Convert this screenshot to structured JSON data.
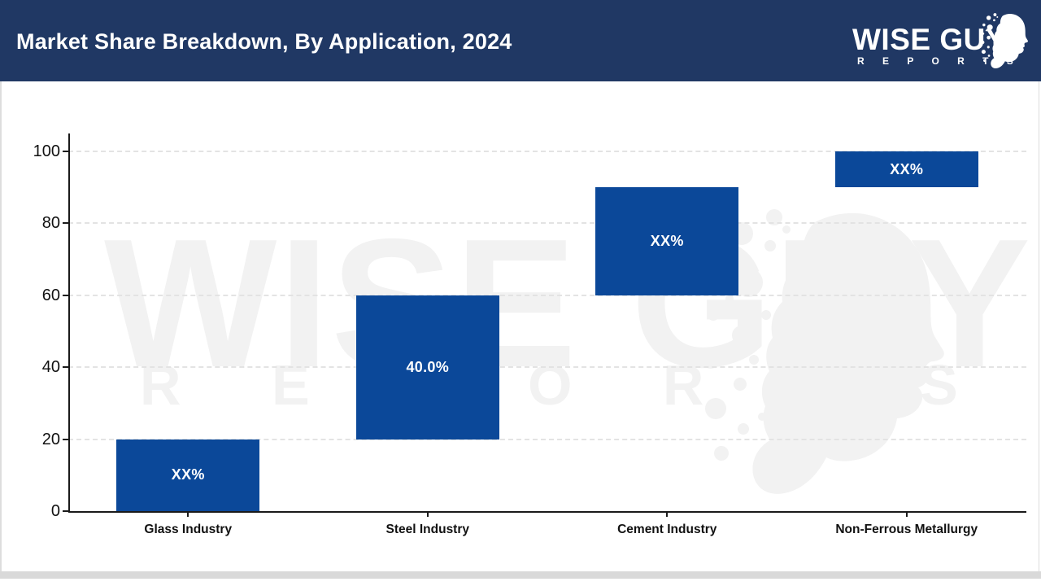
{
  "header": {
    "title": "Market Share Breakdown, By Application, 2024",
    "brand": {
      "line1": "WISE GUY",
      "line2": "R E P O R T S"
    }
  },
  "watermark": {
    "line1": "WISE GUY",
    "line2": "R E P O R T S"
  },
  "chart_data": {
    "type": "bar",
    "subtype": "waterfall",
    "title": "Market Share Breakdown, By Application, 2024",
    "categories": [
      "Glass Industry",
      "Steel Industry",
      "Cement Industry",
      "Non-Ferrous Metallurgy"
    ],
    "bars": [
      {
        "category": "Glass Industry",
        "start": 0,
        "end": 20,
        "value": 20,
        "label": "XX%"
      },
      {
        "category": "Steel Industry",
        "start": 20,
        "end": 60,
        "value": 40,
        "label": "40.0%"
      },
      {
        "category": "Cement Industry",
        "start": 60,
        "end": 90,
        "value": 30,
        "label": "XX%"
      },
      {
        "category": "Non-Ferrous Metallurgy",
        "start": 90,
        "end": 100,
        "value": 10,
        "label": "XX%"
      }
    ],
    "yticks": [
      0,
      20,
      40,
      60,
      80,
      100
    ],
    "ylim": [
      0,
      100
    ],
    "xlabel": "",
    "ylabel": "",
    "grid": "horizontal-dashed",
    "legend": "none"
  },
  "colors": {
    "header_bg": "#203864",
    "bar": "#0b4899",
    "bar_label": "#ffffff",
    "grid": "#e3e3e3",
    "axis": "#1a1a1a",
    "watermark": "#f2f2f2",
    "footer_strip": "#d9d9d9"
  }
}
